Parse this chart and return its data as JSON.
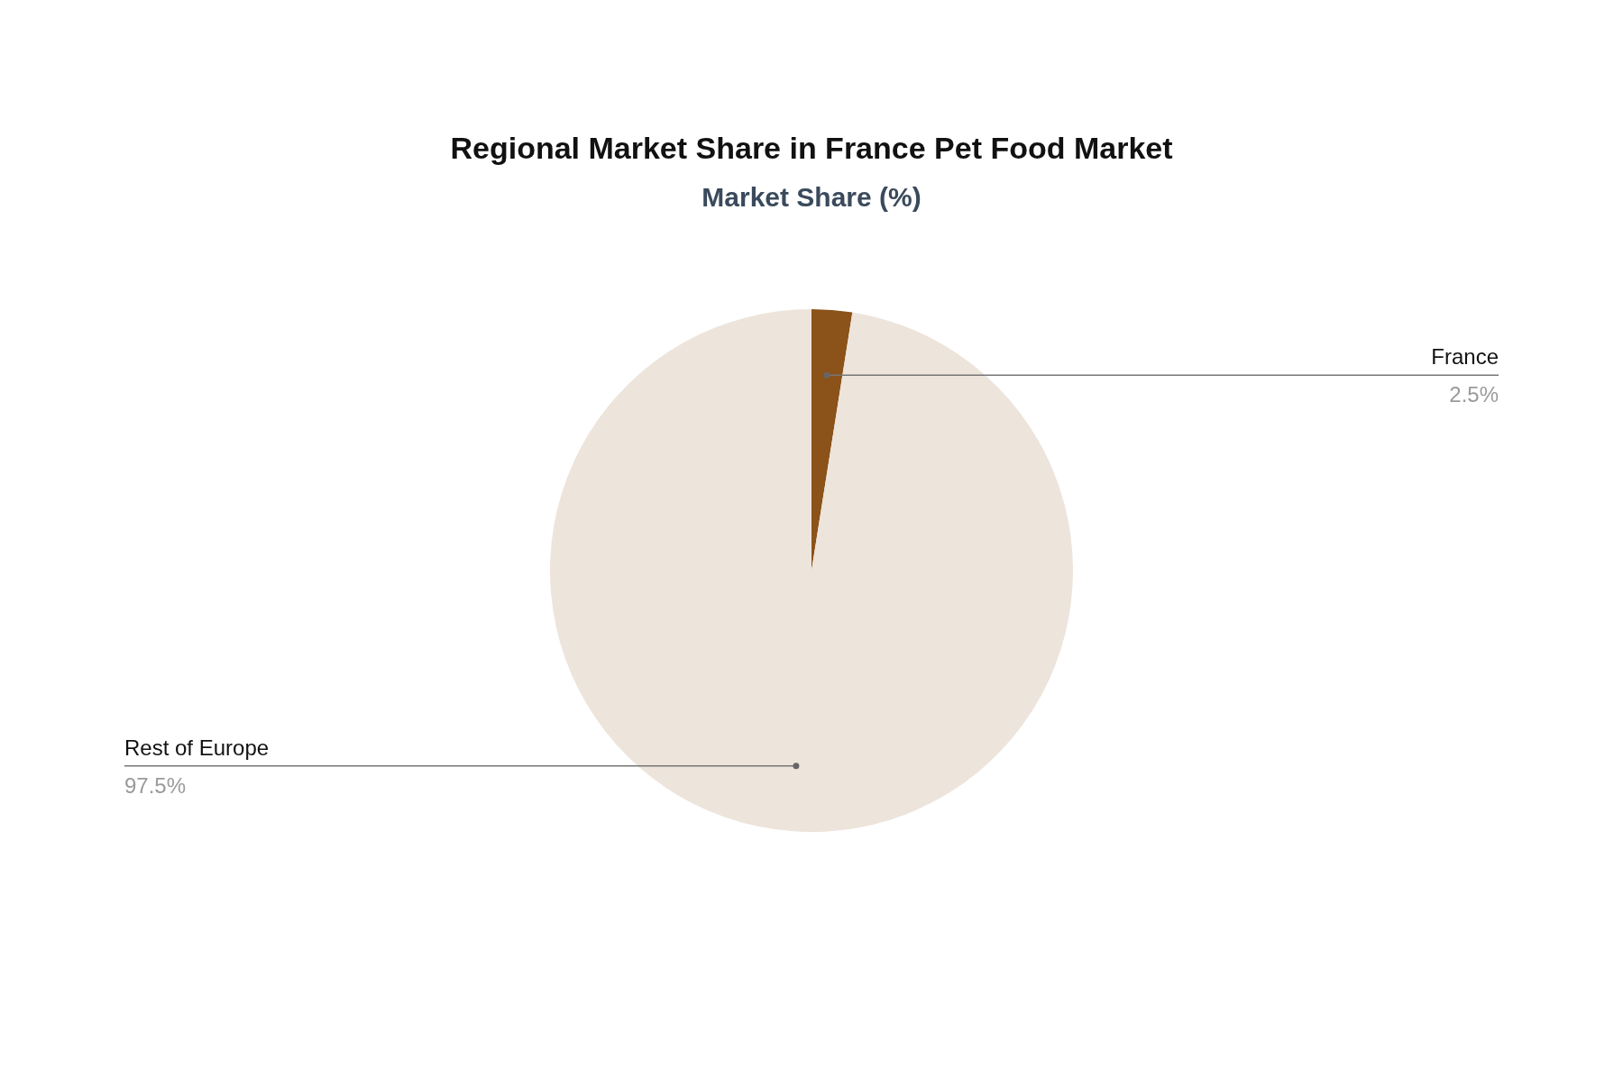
{
  "chart_data": {
    "type": "pie",
    "title": "Regional Market Share in France Pet Food Market",
    "subtitle": "Market Share (%)",
    "categories": [
      "France",
      "Rest of Europe"
    ],
    "values": [
      2.5,
      97.5
    ],
    "value_labels": [
      "2.5%",
      "97.5%"
    ],
    "colors": [
      "#8b5219",
      "#ede4db"
    ]
  }
}
